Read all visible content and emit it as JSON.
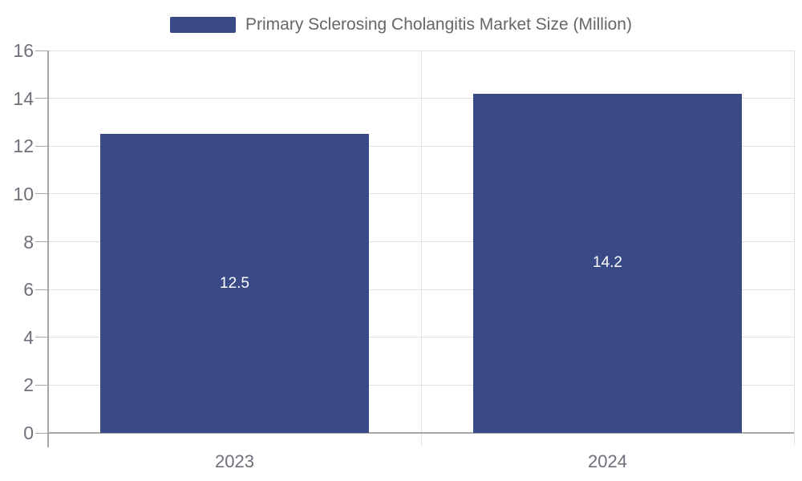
{
  "chart_data": {
    "type": "bar",
    "title": "Primary Sclerosing Cholangitis Market Size (Million)",
    "categories": [
      "2023",
      "2024"
    ],
    "series": [
      {
        "name": "Primary Sclerosing Cholangitis Market Size (Million)",
        "values": [
          12.5,
          14.2
        ]
      }
    ],
    "data_labels": [
      "12.5",
      "14.2"
    ],
    "xlabel": "",
    "ylabel": "",
    "ylim": [
      0,
      16
    ],
    "ytick_step": 2,
    "ytick_labels": [
      "0",
      "2",
      "4",
      "6",
      "8",
      "10",
      "12",
      "14",
      "16"
    ],
    "grid": true,
    "legend_position": "top-center",
    "label_position": "inside-middle",
    "colors": {
      "bar": "#3A4A87",
      "axis_line": "#A6A6A6",
      "grid_line": "#E0E0E0",
      "tick_label": "#6E7079",
      "legend_text": "#666666",
      "data_label": "#FFFFFF",
      "background": "#FFFFFF"
    }
  }
}
